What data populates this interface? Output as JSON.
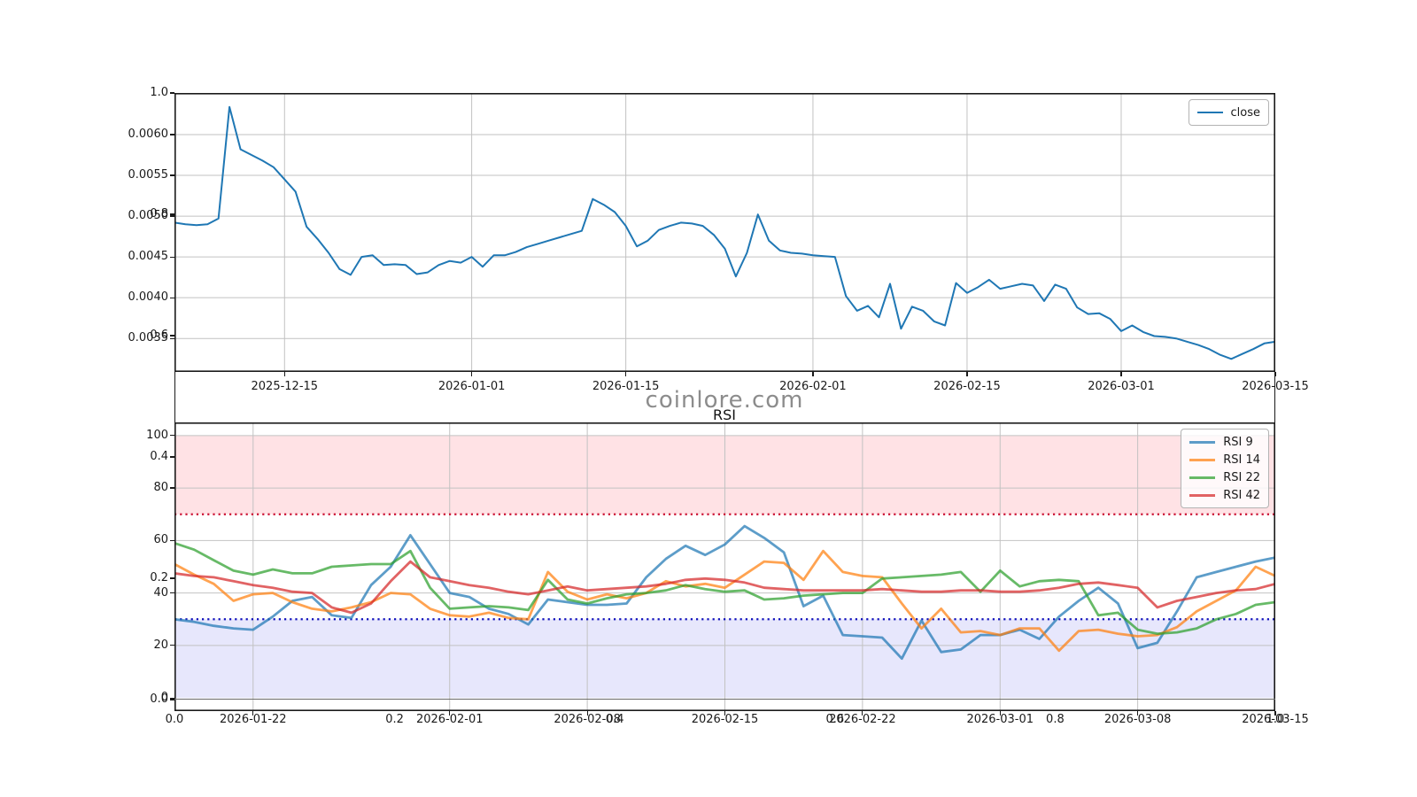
{
  "watermark": "coinlore.com",
  "overlay_axis": {
    "y_tick_labels": [
      "1.0",
      "0.8",
      "0.6",
      "0.4",
      "0.2",
      "0.0"
    ],
    "x_tick_labels": [
      "0.0",
      "0.2",
      "0.4",
      "0.6",
      "0.8",
      "1.0"
    ]
  },
  "chart_data": [
    {
      "type": "line",
      "title": "",
      "ylabel": "",
      "xlabel": "",
      "grid": true,
      "legend_position": "upper right",
      "ylim": [
        0.00309,
        0.00651
      ],
      "y_ticks": [
        {
          "label": "0.0060",
          "value": 0.006
        },
        {
          "label": "0.0055",
          "value": 0.0055
        },
        {
          "label": "0.0050",
          "value": 0.005
        },
        {
          "label": "0.0045",
          "value": 0.0045
        },
        {
          "label": "0.0040",
          "value": 0.004
        },
        {
          "label": "0.0035",
          "value": 0.0035
        }
      ],
      "x_ticks": [
        {
          "label": "2025-12-15",
          "index": 10
        },
        {
          "label": "2026-01-01",
          "index": 27
        },
        {
          "label": "2026-01-15",
          "index": 41
        },
        {
          "label": "2026-02-01",
          "index": 58
        },
        {
          "label": "2026-02-15",
          "index": 72
        },
        {
          "label": "2026-03-01",
          "index": 86
        },
        {
          "label": "2026-03-15",
          "index": 100
        }
      ],
      "x": [
        "2025-12-05",
        "2025-12-06",
        "2025-12-07",
        "2025-12-08",
        "2025-12-09",
        "2025-12-10",
        "2025-12-11",
        "2025-12-12",
        "2025-12-13",
        "2025-12-14",
        "2025-12-15",
        "2025-12-16",
        "2025-12-17",
        "2025-12-18",
        "2025-12-19",
        "2025-12-20",
        "2025-12-21",
        "2025-12-22",
        "2025-12-23",
        "2025-12-24",
        "2025-12-25",
        "2025-12-26",
        "2025-12-27",
        "2025-12-28",
        "2025-12-29",
        "2025-12-30",
        "2025-12-31",
        "2026-01-01",
        "2026-01-02",
        "2026-01-03",
        "2026-01-04",
        "2026-01-05",
        "2026-01-06",
        "2026-01-07",
        "2026-01-08",
        "2026-01-09",
        "2026-01-10",
        "2026-01-11",
        "2026-01-12",
        "2026-01-13",
        "2026-01-14",
        "2026-01-15",
        "2026-01-16",
        "2026-01-17",
        "2026-01-18",
        "2026-01-19",
        "2026-01-20",
        "2026-01-21",
        "2026-01-22",
        "2026-01-23",
        "2026-01-24",
        "2026-01-25",
        "2026-01-26",
        "2026-01-27",
        "2026-01-28",
        "2026-01-29",
        "2026-01-30",
        "2026-01-31",
        "2026-02-01",
        "2026-02-02",
        "2026-02-03",
        "2026-02-04",
        "2026-02-05",
        "2026-02-06",
        "2026-02-07",
        "2026-02-08",
        "2026-02-09",
        "2026-02-10",
        "2026-02-11",
        "2026-02-12",
        "2026-02-13",
        "2026-02-14",
        "2026-02-15",
        "2026-02-16",
        "2026-02-17",
        "2026-02-18",
        "2026-02-19",
        "2026-02-20",
        "2026-02-21",
        "2026-02-22",
        "2026-02-23",
        "2026-02-24",
        "2026-02-25",
        "2026-02-26",
        "2026-02-27",
        "2026-02-28",
        "2026-03-01",
        "2026-03-02",
        "2026-03-03",
        "2026-03-04",
        "2026-03-05",
        "2026-03-06",
        "2026-03-07",
        "2026-03-08",
        "2026-03-09",
        "2026-03-10",
        "2026-03-11",
        "2026-03-12",
        "2026-03-13",
        "2026-03-14",
        "2026-03-15"
      ],
      "series": [
        {
          "name": "close",
          "color": "#1f77b4",
          "width": 2,
          "values": [
            0.00492,
            0.0049,
            0.00489,
            0.0049,
            0.00497,
            0.00634,
            0.00582,
            0.00575,
            0.00568,
            0.0056,
            0.00545,
            0.0053,
            0.00487,
            0.00472,
            0.00455,
            0.00435,
            0.00428,
            0.0045,
            0.00452,
            0.0044,
            0.00441,
            0.0044,
            0.00429,
            0.00431,
            0.0044,
            0.00445,
            0.00443,
            0.0045,
            0.00438,
            0.00452,
            0.00452,
            0.00456,
            0.00462,
            0.00466,
            0.0047,
            0.00474,
            0.00478,
            0.00482,
            0.00521,
            0.00514,
            0.00505,
            0.00488,
            0.00463,
            0.0047,
            0.00483,
            0.00488,
            0.00492,
            0.00491,
            0.00488,
            0.00477,
            0.0046,
            0.00426,
            0.00455,
            0.00502,
            0.0047,
            0.00458,
            0.00455,
            0.00454,
            0.00452,
            0.00451,
            0.0045,
            0.00402,
            0.00384,
            0.0039,
            0.00376,
            0.00417,
            0.00362,
            0.00389,
            0.00384,
            0.00371,
            0.00366,
            0.00418,
            0.00406,
            0.00413,
            0.00422,
            0.00411,
            0.00414,
            0.00417,
            0.00415,
            0.00396,
            0.00416,
            0.00411,
            0.00388,
            0.0038,
            0.00381,
            0.00374,
            0.00359,
            0.00366,
            0.00358,
            0.00353,
            0.00352,
            0.0035,
            0.00346,
            0.00342,
            0.00337,
            0.0033,
            0.00325,
            0.00331,
            0.00337,
            0.00344,
            0.00346
          ]
        }
      ]
    },
    {
      "type": "line",
      "title": "RSI",
      "ylabel": "",
      "xlabel": "",
      "grid": true,
      "legend_position": "upper right",
      "ylim": [
        -5,
        105
      ],
      "bands": [
        {
          "from": 70,
          "to": 100,
          "color": "rgba(255,20,40,0.12)",
          "note": "overbought zone"
        },
        {
          "from": 0,
          "to": 30,
          "color": "rgba(40,40,230,0.11)",
          "note": "oversold zone"
        }
      ],
      "hlines": [
        {
          "y": 70,
          "color": "#cc1133",
          "style": "dotted"
        },
        {
          "y": 30,
          "color": "#1111bb",
          "style": "dotted"
        }
      ],
      "y_ticks": [
        {
          "label": "100",
          "value": 100
        },
        {
          "label": "80",
          "value": 80
        },
        {
          "label": "60",
          "value": 60
        },
        {
          "label": "40",
          "value": 40
        },
        {
          "label": "20",
          "value": 20
        },
        {
          "label": "0",
          "value": 0
        }
      ],
      "x_ticks": [
        {
          "label": "2026-01-22",
          "index": 4
        },
        {
          "label": "2026-02-01",
          "index": 14
        },
        {
          "label": "2026-02-08",
          "index": 21
        },
        {
          "label": "2026-02-15",
          "index": 28
        },
        {
          "label": "2026-02-22",
          "index": 35
        },
        {
          "label": "2026-03-01",
          "index": 42
        },
        {
          "label": "2026-03-08",
          "index": 49
        },
        {
          "label": "2026-03-15",
          "index": 56
        }
      ],
      "x": [
        "2026-01-18",
        "2026-01-19",
        "2026-01-20",
        "2026-01-21",
        "2026-01-22",
        "2026-01-23",
        "2026-01-24",
        "2026-01-25",
        "2026-01-26",
        "2026-01-27",
        "2026-01-28",
        "2026-01-29",
        "2026-01-30",
        "2026-01-31",
        "2026-02-01",
        "2026-02-02",
        "2026-02-03",
        "2026-02-04",
        "2026-02-05",
        "2026-02-06",
        "2026-02-07",
        "2026-02-08",
        "2026-02-09",
        "2026-02-10",
        "2026-02-11",
        "2026-02-12",
        "2026-02-13",
        "2026-02-14",
        "2026-02-15",
        "2026-02-16",
        "2026-02-17",
        "2026-02-18",
        "2026-02-19",
        "2026-02-20",
        "2026-02-21",
        "2026-02-22",
        "2026-02-23",
        "2026-02-24",
        "2026-02-25",
        "2026-02-26",
        "2026-02-27",
        "2026-02-28",
        "2026-03-01",
        "2026-03-02",
        "2026-03-03",
        "2026-03-04",
        "2026-03-05",
        "2026-03-06",
        "2026-03-07",
        "2026-03-08",
        "2026-03-09",
        "2026-03-10",
        "2026-03-11",
        "2026-03-12",
        "2026-03-13",
        "2026-03-14",
        "2026-03-15"
      ],
      "series": [
        {
          "name": "RSI 9",
          "color": "rgba(31,119,180,0.72)",
          "width": 2.8,
          "values": [
            30,
            29,
            27.5,
            26.5,
            26,
            31,
            37,
            38.5,
            31.5,
            30.5,
            43,
            50,
            62,
            51,
            40,
            38.5,
            34,
            32,
            28,
            37.5,
            36.5,
            35.5,
            35.5,
            36,
            46,
            53,
            58,
            54.5,
            58.5,
            65.5,
            61,
            55.5,
            35,
            39,
            24,
            23.5,
            23,
            15,
            29.5,
            17.5,
            18.5,
            24,
            24,
            26,
            22.5,
            31,
            37,
            42,
            36,
            19,
            21,
            33,
            46,
            48,
            50,
            52,
            53.5
          ]
        },
        {
          "name": "RSI 14",
          "color": "rgba(255,127,14,0.72)",
          "width": 2.8,
          "values": [
            51,
            47,
            43.5,
            37,
            39.5,
            40,
            36.5,
            34,
            33,
            34.5,
            36.5,
            40,
            39.5,
            34,
            31.5,
            31,
            32.5,
            30.5,
            30,
            48,
            40.5,
            37.5,
            39.5,
            38,
            40,
            44.5,
            42.5,
            43.5,
            42,
            47,
            52,
            51.5,
            45,
            56,
            48,
            46.5,
            46,
            36,
            26.5,
            34,
            25,
            25.5,
            24,
            26.5,
            26.5,
            18,
            25.5,
            26,
            24.5,
            23.5,
            24,
            27,
            33,
            37,
            41,
            50,
            46.5
          ]
        },
        {
          "name": "RSI 22",
          "color": "rgba(44,160,44,0.72)",
          "width": 2.8,
          "values": [
            59,
            56.5,
            52.5,
            48.5,
            47,
            49,
            47.5,
            47.5,
            50,
            50.5,
            51,
            51,
            56,
            42,
            34,
            34.5,
            35,
            34.5,
            33.5,
            45,
            37.5,
            36,
            38,
            39.5,
            40,
            41,
            43,
            41.5,
            40.5,
            41,
            37.5,
            38,
            39,
            39.5,
            40,
            40,
            45.5,
            46,
            46.5,
            47,
            48,
            40.5,
            48.5,
            42.5,
            44.5,
            45,
            44.5,
            31.5,
            32.5,
            26,
            24.5,
            25,
            26.5,
            30,
            32,
            35.5,
            36.5
          ]
        },
        {
          "name": "RSI 42",
          "color": "rgba(214,39,40,0.72)",
          "width": 2.8,
          "values": [
            47.5,
            46.5,
            46,
            44.5,
            43,
            42,
            40.5,
            40,
            34.5,
            32.5,
            36,
            44.5,
            52,
            46,
            44.5,
            43,
            42,
            40.5,
            39.5,
            41,
            42.5,
            41,
            41.5,
            42,
            42.5,
            43.5,
            45,
            45.5,
            45,
            44,
            42,
            41.5,
            41,
            41,
            41,
            41,
            41.5,
            41,
            40.5,
            40.5,
            41,
            41,
            40.5,
            40.5,
            41,
            42,
            43.5,
            44,
            43,
            42,
            34.5,
            37,
            38.5,
            40,
            41,
            41.5,
            43.5
          ]
        }
      ]
    }
  ]
}
